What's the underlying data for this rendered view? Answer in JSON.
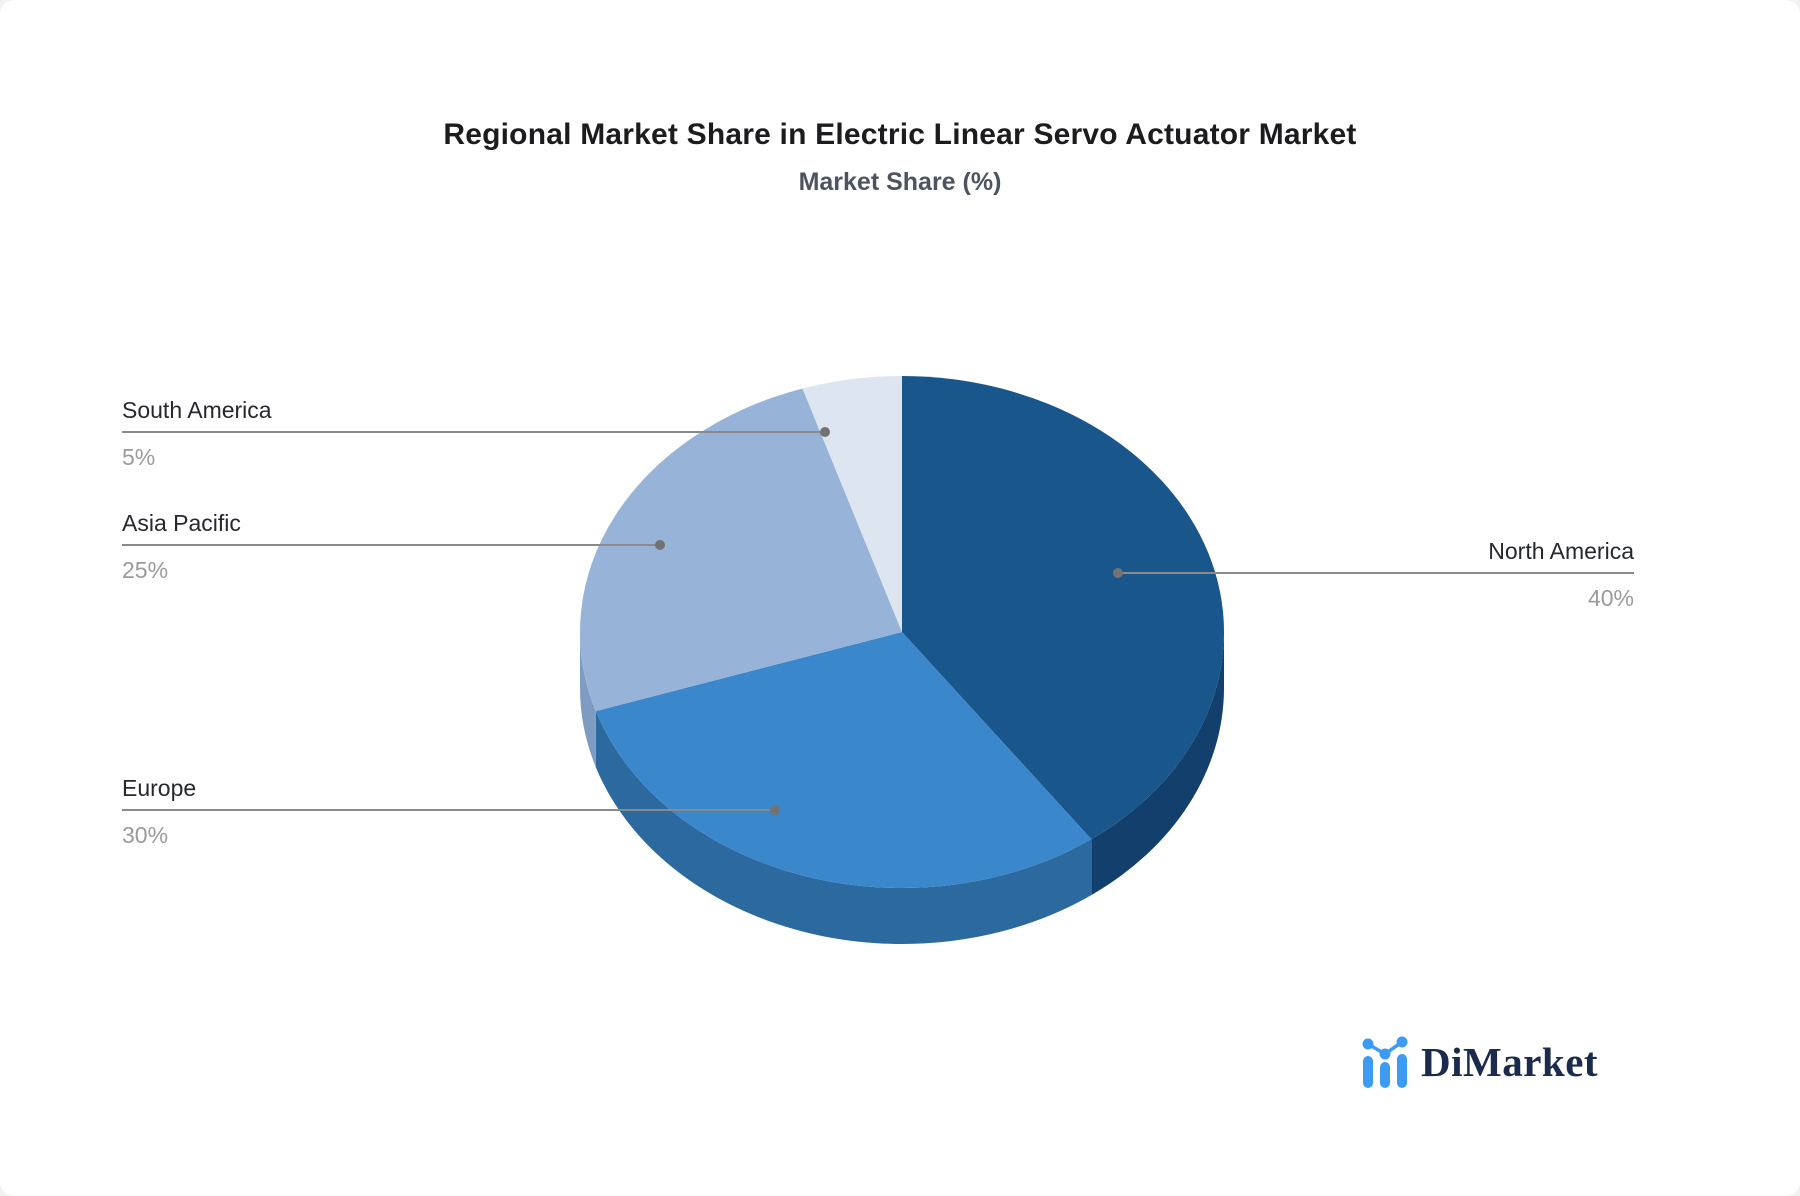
{
  "header": {
    "title": "Regional Market Share in Electric Linear Servo Actuator Market",
    "subtitle": "Market Share (%)"
  },
  "chart_data": {
    "type": "pie",
    "style": "3d",
    "title": "Regional Market Share in Electric Linear Servo Actuator Market",
    "subtitle": "Market Share (%)",
    "unit": "%",
    "direction": "clockwise",
    "start_angle_deg": 0,
    "legend_position": "none",
    "categories": [
      "North America",
      "Europe",
      "Asia Pacific",
      "South America"
    ],
    "values": [
      40,
      30,
      25,
      5
    ],
    "series": [
      {
        "name": "North America",
        "value": 40,
        "label": "40%",
        "color": "#19568C",
        "side_color": "#123F6B"
      },
      {
        "name": "Europe",
        "value": 30,
        "label": "30%",
        "color": "#3A87CC",
        "side_color": "#2C699F"
      },
      {
        "name": "Asia Pacific",
        "value": 25,
        "label": "25%",
        "color": "#97B4D8",
        "side_color": "#7E9CC2"
      },
      {
        "name": "South America",
        "value": 5,
        "label": "5%",
        "color": "#DDE5F0",
        "side_color": "#C3CFDF"
      }
    ]
  },
  "branding": {
    "logo_text": "DiMarket",
    "logo_text_color": "#1b2b4d",
    "icon_color": "#3D9BF4"
  },
  "colors": {
    "leader_line": "#8a8a8a",
    "dot": "#737373"
  }
}
